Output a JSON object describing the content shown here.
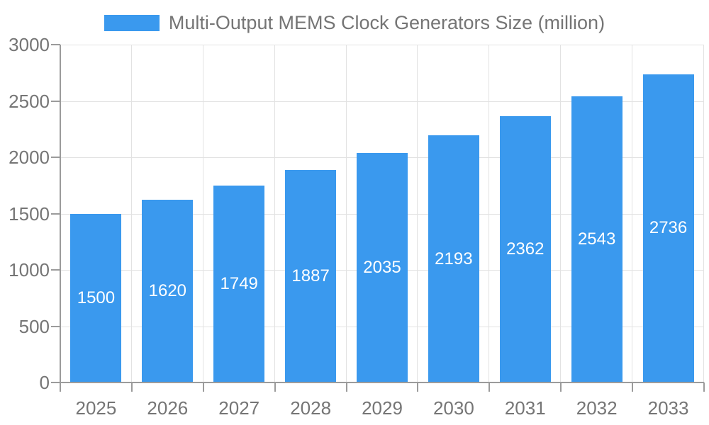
{
  "chart_data": {
    "type": "bar",
    "title": "Multi-Output MEMS Clock Generators Size (million)",
    "categories": [
      "2025",
      "2026",
      "2027",
      "2028",
      "2029",
      "2030",
      "2031",
      "2032",
      "2033"
    ],
    "values": [
      1500,
      1620,
      1749,
      1887,
      2035,
      2193,
      2362,
      2543,
      2736
    ],
    "xlabel": "",
    "ylabel": "",
    "ylim": [
      0,
      3000
    ],
    "ytick_step": 500,
    "grid": true,
    "legend_position": "top-center",
    "bar_color": "#3A99EE",
    "value_label_color": "#ffffff",
    "axis_line_color": "#9b9b9b",
    "gridline_color": "#e2e2e2",
    "tick_label_color": "#757575",
    "legend_text_color": "#757575"
  }
}
